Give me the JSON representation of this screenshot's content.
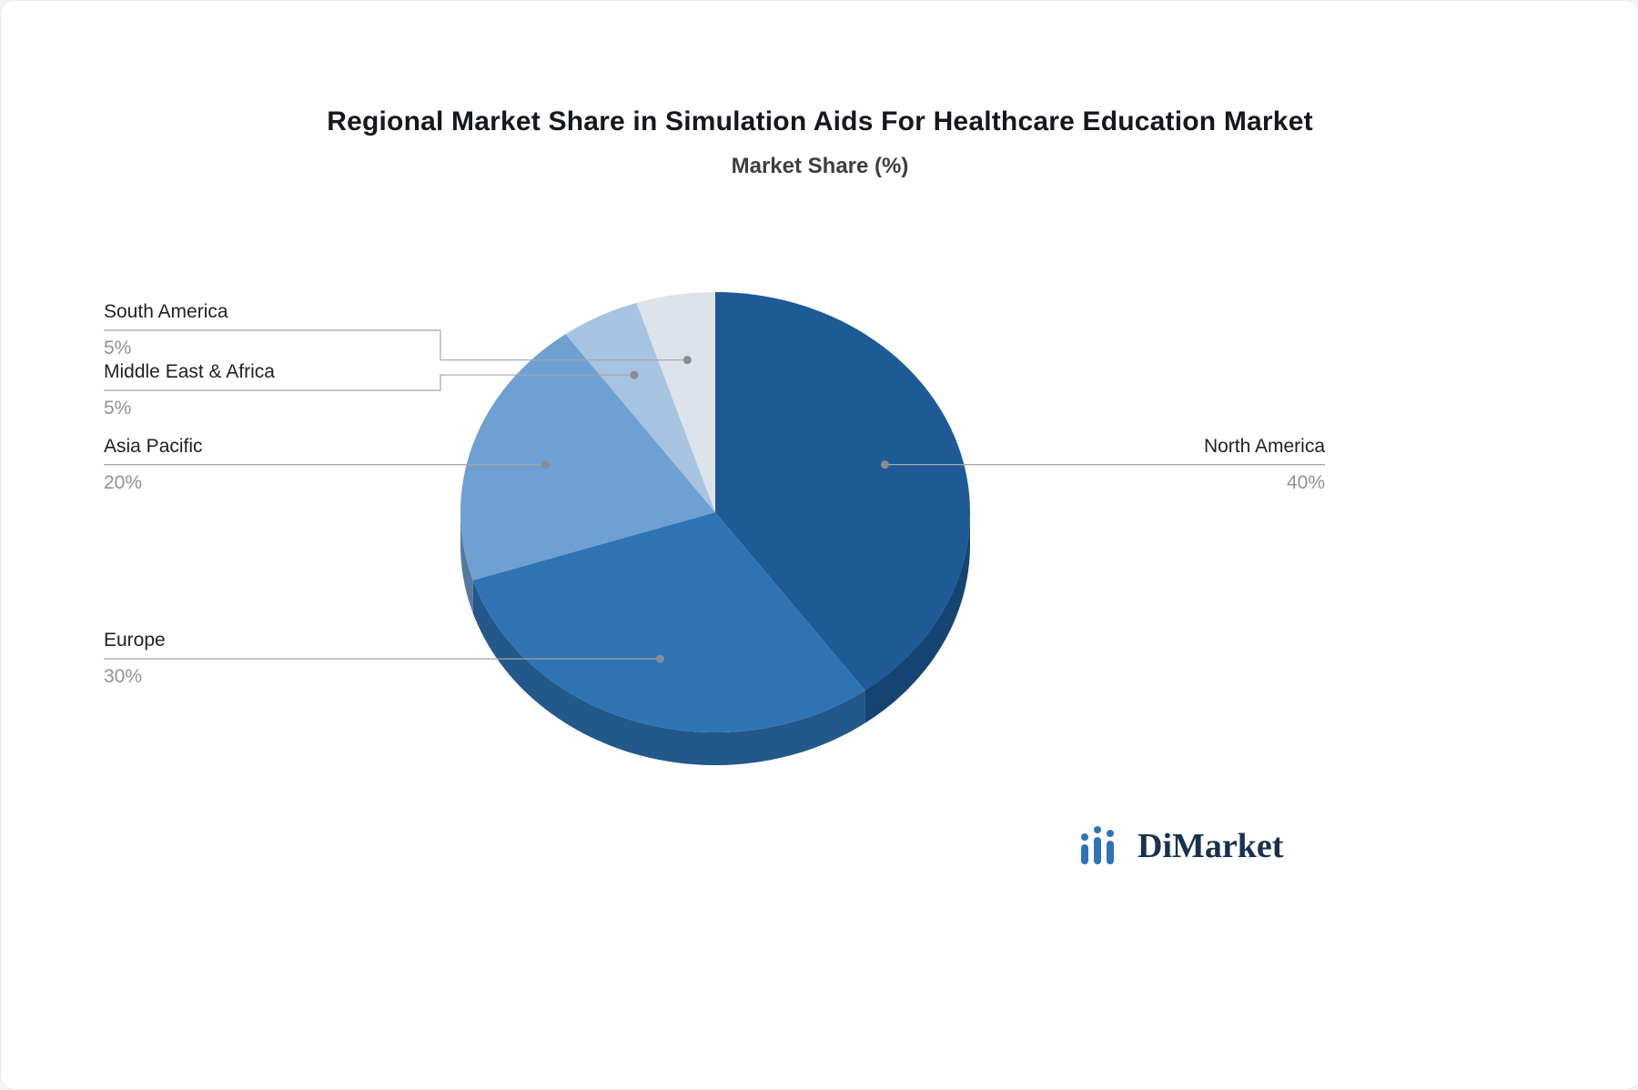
{
  "title": "Regional Market Share in Simulation Aids For Healthcare Education Market",
  "subtitle": "Market Share (%)",
  "brand": {
    "name": "DiMarket",
    "icon": "bar-chart-icon"
  },
  "chart_data": {
    "type": "pie",
    "title": "Regional Market Share in Simulation Aids For Healthcare Education Market",
    "subtitle": "Market Share (%)",
    "unit": "%",
    "style": "3d",
    "direction": "clockwise",
    "start_angle_deg": 0,
    "legend_position": "callout-labels",
    "leader_line_color": "#a3a5a8",
    "leader_dot_color": "#8a8c8f",
    "slices": [
      {
        "label": "North America",
        "value": 40,
        "color": "#1d5a96"
      },
      {
        "label": "Europe",
        "value": 30,
        "color": "#2e74b5"
      },
      {
        "label": "Asia Pacific",
        "value": 20,
        "color": "#6fa0d2"
      },
      {
        "label": "Middle East & Africa",
        "value": 5,
        "color": "#a7c3e2"
      },
      {
        "label": "South America",
        "value": 5,
        "color": "#dde3ea"
      }
    ]
  }
}
